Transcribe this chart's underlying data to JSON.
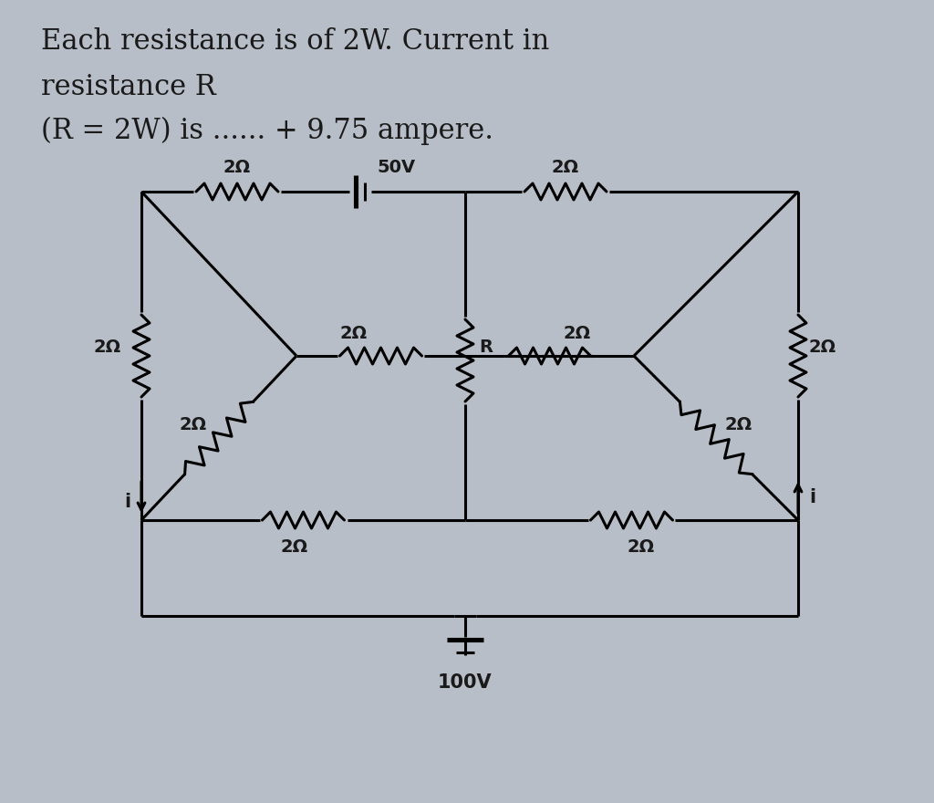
{
  "title_line1": "Each resistance is of 2W. Current in",
  "title_line2": "resistance R",
  "title_line3": "(R = 2W) is ...... + 9.75 ampere.",
  "bg_color": "#b8bec8",
  "line_color": "#000000",
  "text_color": "#1a1a1a",
  "resistor_label": "2Ω",
  "voltage_50": "50V",
  "voltage_100": "100V",
  "label_R": "R",
  "label_i_left": "i",
  "label_i_right": "i",
  "title_fontsize": 22,
  "label_fontsize": 14
}
